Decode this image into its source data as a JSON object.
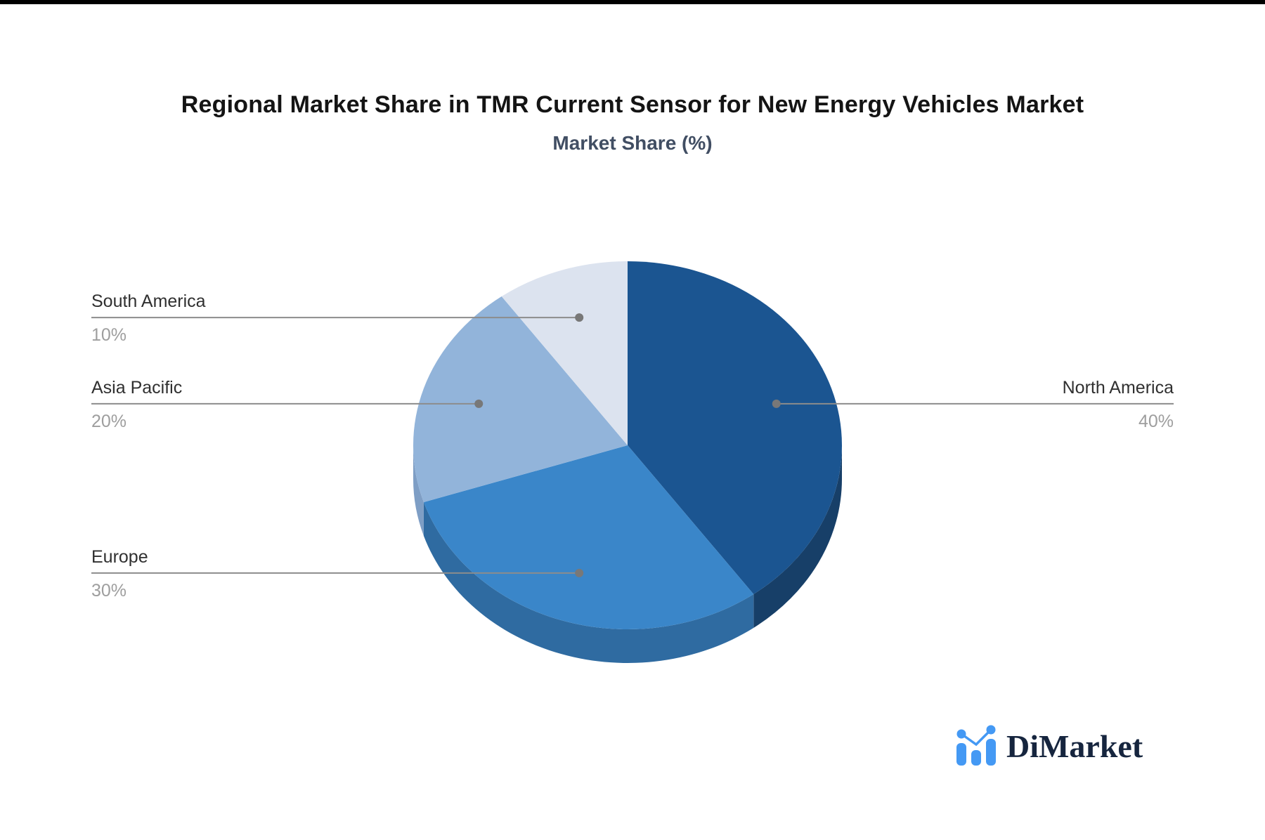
{
  "title": "Regional Market Share in TMR Current Sensor for New Energy Vehicles Market",
  "subtitle": "Market Share (%)",
  "chart_data": {
    "type": "pie",
    "title": "Regional Market Share in TMR Current Sensor for New Energy Vehicles Market",
    "subtitle": "Market Share (%)",
    "effect": "3d",
    "start_angle": "top",
    "direction": "clockwise",
    "legend_position": "callout-labels",
    "slices": [
      {
        "label": "North America",
        "value": 40,
        "pct_label": "40%",
        "color": "#1B5591",
        "side_color": "#173F68",
        "label_side": "right"
      },
      {
        "label": "Europe",
        "value": 30,
        "pct_label": "30%",
        "color": "#3A86C9",
        "side_color": "#2F6BA1",
        "label_side": "left"
      },
      {
        "label": "Asia Pacific",
        "value": 20,
        "pct_label": "20%",
        "color": "#92B4DA",
        "side_color": "#7E9EC5",
        "label_side": "left"
      },
      {
        "label": "South America",
        "value": 10,
        "pct_label": "10%",
        "color": "#DCE3EF",
        "side_color": "#B8C4D9",
        "label_side": "left"
      }
    ]
  },
  "branding": {
    "logo_text": "DiMarket",
    "logo_text_color": "#16253E",
    "icon": "bar-line-chart-icon",
    "icon_color": "#4499F4"
  },
  "colors": {
    "leader_line": "#8C8C8C",
    "leader_dot": "#787878",
    "label_text": "#303030",
    "pct_text": "#9E9E9E",
    "title_text": "#141414",
    "subtitle_text": "#414E63"
  }
}
